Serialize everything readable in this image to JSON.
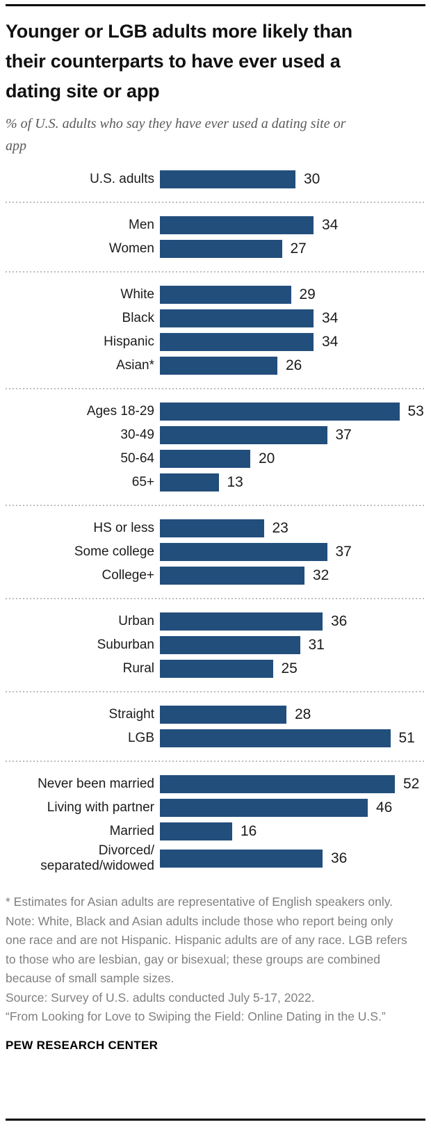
{
  "header": {
    "title": "Younger or LGB adults more likely than their counterparts to have ever used a dating site or app",
    "subtitle": "% of U.S. adults who say they have ever used a dating site or app"
  },
  "chart_data": {
    "type": "bar",
    "orientation": "horizontal",
    "unit": "%",
    "xlim": [
      0,
      57
    ],
    "bar_color": "#224E7C",
    "grid": false,
    "legend": "none",
    "title": "Younger or LGB adults more likely than their counterparts to have ever used a dating site or app",
    "xlabel": "",
    "ylabel": "",
    "groups": [
      {
        "name": "overall",
        "rows": [
          {
            "label": "U.S. adults",
            "value": 30
          }
        ]
      },
      {
        "name": "gender",
        "rows": [
          {
            "label": "Men",
            "value": 34
          },
          {
            "label": "Women",
            "value": 27
          }
        ]
      },
      {
        "name": "race-ethnicity",
        "rows": [
          {
            "label": "White",
            "value": 29
          },
          {
            "label": "Black",
            "value": 34
          },
          {
            "label": "Hispanic",
            "value": 34
          },
          {
            "label": "Asian*",
            "value": 26
          }
        ]
      },
      {
        "name": "age",
        "rows": [
          {
            "label": "Ages 18-29",
            "value": 53
          },
          {
            "label": "30-49",
            "value": 37
          },
          {
            "label": "50-64",
            "value": 20
          },
          {
            "label": "65+",
            "value": 13
          }
        ]
      },
      {
        "name": "education",
        "rows": [
          {
            "label": "HS or less",
            "value": 23
          },
          {
            "label": "Some college",
            "value": 37
          },
          {
            "label": "College+",
            "value": 32
          }
        ]
      },
      {
        "name": "community",
        "rows": [
          {
            "label": "Urban",
            "value": 36
          },
          {
            "label": "Suburban",
            "value": 31
          },
          {
            "label": "Rural",
            "value": 25
          }
        ]
      },
      {
        "name": "sexual-orientation",
        "rows": [
          {
            "label": "Straight",
            "value": 28
          },
          {
            "label": "LGB",
            "value": 51
          }
        ]
      },
      {
        "name": "marital-status",
        "rows": [
          {
            "label": "Never been married",
            "value": 52
          },
          {
            "label": "Living with partner",
            "value": 46
          },
          {
            "label": "Married",
            "value": 16
          },
          {
            "label": [
              "Divorced/",
              "separated/widowed"
            ],
            "value": 36
          }
        ]
      }
    ]
  },
  "footnotes": [
    "* Estimates for Asian adults are representative of English speakers only.",
    "Note: White, Black and Asian adults include those who report being only one race and are not Hispanic. Hispanic adults are of any race. LGB refers to those who are lesbian, gay or bisexual; these groups are combined because of small sample sizes.",
    "Source: Survey of U.S. adults conducted July 5-17, 2022.",
    "“From Looking for Love to Swiping the Field: Online Dating in the U.S.”"
  ],
  "footer": {
    "brand": "PEW RESEARCH CENTER"
  }
}
